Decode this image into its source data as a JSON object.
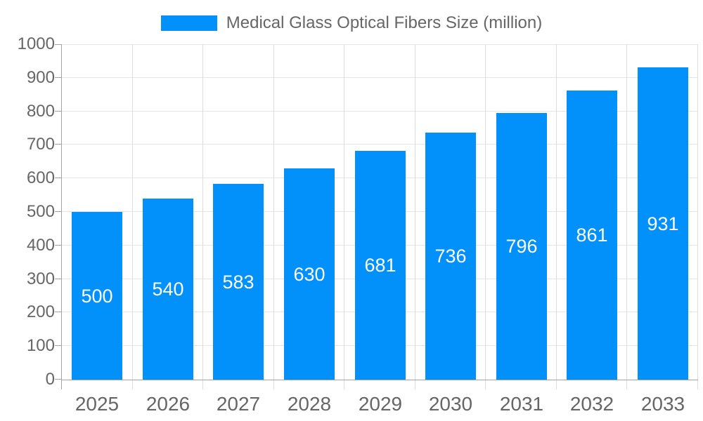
{
  "chart_data": {
    "type": "bar",
    "title": "Medical Glass Optical Fibers Size (million)",
    "categories": [
      "2025",
      "2026",
      "2027",
      "2028",
      "2029",
      "2030",
      "2031",
      "2032",
      "2033"
    ],
    "series": [
      {
        "name": "Medical Glass Optical Fibers Size (million)",
        "values": [
          500,
          540,
          583,
          630,
          681,
          736,
          796,
          861,
          931
        ]
      }
    ],
    "xlabel": "",
    "ylabel": "",
    "ylim": [
      0,
      1000
    ],
    "ytick_step": 100,
    "ytick_labels": [
      "0",
      "100",
      "200",
      "300",
      "400",
      "500",
      "600",
      "700",
      "800",
      "900",
      "1000"
    ],
    "grid": "on",
    "legend_position": "top-center",
    "value_labels": "inside-center",
    "colors": {
      "bar": "#0290fa",
      "value_label": "#ffffff",
      "axis_line": "#a3a3a3",
      "gridline_h": "#e5e5e5",
      "gridline_v": "#dcdcdc",
      "tick_label": "#666666",
      "background": "#ffffff"
    }
  }
}
